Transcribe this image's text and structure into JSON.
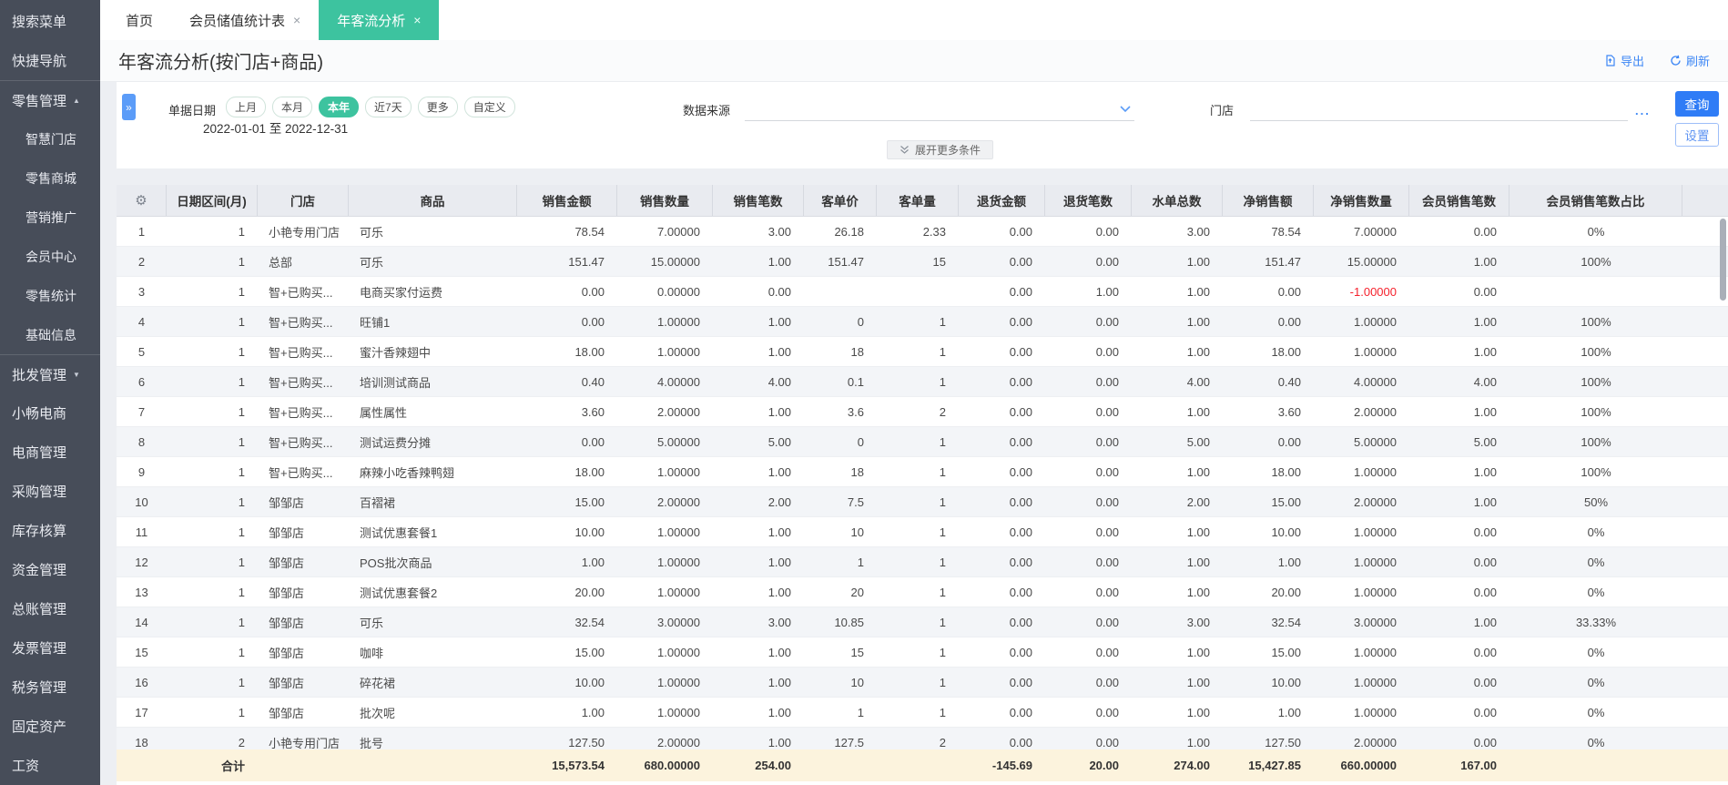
{
  "colors": {
    "sidebar_bg": "#474d59",
    "accent_green": "#3dc39f",
    "accent_blue": "#2f7cf6",
    "link_blue": "#3d87f5",
    "negative_red": "#f5222d",
    "total_row_bg": "#fcf3dd",
    "header_bg": "#e9ebf0"
  },
  "sidebar": {
    "items": [
      {
        "id": "search-menu",
        "label": "搜索菜单"
      },
      {
        "id": "quick-nav",
        "label": "快捷导航"
      },
      {
        "id": "retail-management",
        "label": "零售管理",
        "arrow": "up",
        "sep": true
      },
      {
        "id": "smart-store",
        "label": "智慧门店",
        "sub": true
      },
      {
        "id": "retail-mall",
        "label": "零售商城",
        "sub": true
      },
      {
        "id": "marketing-promotion",
        "label": "营销推广",
        "sub": true
      },
      {
        "id": "member-center",
        "label": "会员中心",
        "sub": true
      },
      {
        "id": "retail-statistics",
        "label": "零售统计",
        "sub": true
      },
      {
        "id": "basic-info",
        "label": "基础信息",
        "sub": true
      },
      {
        "id": "wholesale-management",
        "label": "批发管理",
        "arrow": "down",
        "sep": true
      },
      {
        "id": "xiaochang-ecommerce",
        "label": "小畅电商"
      },
      {
        "id": "ecommerce-management",
        "label": "电商管理"
      },
      {
        "id": "procurement-management",
        "label": "采购管理"
      },
      {
        "id": "inventory-accounting",
        "label": "库存核算"
      },
      {
        "id": "funds-management",
        "label": "资金管理"
      },
      {
        "id": "general-ledger",
        "label": "总账管理"
      },
      {
        "id": "invoice-management",
        "label": "发票管理"
      },
      {
        "id": "tax-management",
        "label": "税务管理"
      },
      {
        "id": "fixed-assets",
        "label": "固定资产"
      },
      {
        "id": "payroll",
        "label": "工资"
      }
    ]
  },
  "tabs": [
    {
      "id": "home",
      "label": "首页",
      "closable": false,
      "active": false
    },
    {
      "id": "member-stored-value-report",
      "label": "会员储值统计表",
      "closable": true,
      "active": false
    },
    {
      "id": "annual-customer-flow",
      "label": "年客流分析",
      "closable": true,
      "active": true
    }
  ],
  "page": {
    "title": "年客流分析(按门店+商品)",
    "export_label": "导出",
    "refresh_label": "刷新"
  },
  "filters": {
    "date_label": "单据日期",
    "date_options": [
      "上月",
      "本月",
      "本年",
      "近7天",
      "更多",
      "自定义"
    ],
    "date_active": "本年",
    "date_range": "2022-01-01 至 2022-12-31",
    "source_label": "数据来源",
    "store_label": "门店",
    "source_value": "",
    "store_value": "",
    "more_label": "展开更多条件",
    "query_label": "查询",
    "settings_label": "设置",
    "more_dots": "..."
  },
  "table": {
    "columns": [
      {
        "id": "date-interval",
        "label": "日期区间(月)"
      },
      {
        "id": "store",
        "label": "门店"
      },
      {
        "id": "product",
        "label": "商品"
      },
      {
        "id": "sales-amount",
        "label": "销售金额"
      },
      {
        "id": "sales-quantity",
        "label": "销售数量"
      },
      {
        "id": "sales-count",
        "label": "销售笔数"
      },
      {
        "id": "price-per-customer",
        "label": "客单价"
      },
      {
        "id": "qty-per-customer",
        "label": "客单量"
      },
      {
        "id": "refund-amount",
        "label": "退货金额"
      },
      {
        "id": "refund-count",
        "label": "退货笔数"
      },
      {
        "id": "receipt-total",
        "label": "水单总数"
      },
      {
        "id": "net-sales-amount",
        "label": "净销售额"
      },
      {
        "id": "net-sales-quantity",
        "label": "净销售数量"
      },
      {
        "id": "member-sales-count",
        "label": "会员销售笔数"
      },
      {
        "id": "member-sales-ratio",
        "label": "会员销售笔数占比"
      }
    ],
    "rows": [
      [
        "1",
        "1",
        "小艳专用门店",
        "可乐",
        "78.54",
        "7.00000",
        "3.00",
        "26.18",
        "2.33",
        "0.00",
        "0.00",
        "3.00",
        "78.54",
        "7.00000",
        "0.00",
        "0%"
      ],
      [
        "2",
        "1",
        "总部",
        "可乐",
        "151.47",
        "15.00000",
        "1.00",
        "151.47",
        "15",
        "0.00",
        "0.00",
        "1.00",
        "151.47",
        "15.00000",
        "1.00",
        "100%"
      ],
      [
        "3",
        "1",
        "智+已购买...",
        "电商买家付运费",
        "0.00",
        "0.00000",
        "0.00",
        "",
        "",
        "0.00",
        "1.00",
        "1.00",
        "0.00",
        "-1.00000",
        "0.00",
        ""
      ],
      [
        "4",
        "1",
        "智+已购买...",
        "旺铺1",
        "0.00",
        "1.00000",
        "1.00",
        "0",
        "1",
        "0.00",
        "0.00",
        "1.00",
        "0.00",
        "1.00000",
        "1.00",
        "100%"
      ],
      [
        "5",
        "1",
        "智+已购买...",
        "蜜汁香辣翅中",
        "18.00",
        "1.00000",
        "1.00",
        "18",
        "1",
        "0.00",
        "0.00",
        "1.00",
        "18.00",
        "1.00000",
        "1.00",
        "100%"
      ],
      [
        "6",
        "1",
        "智+已购买...",
        "培训测试商品",
        "0.40",
        "4.00000",
        "4.00",
        "0.1",
        "1",
        "0.00",
        "0.00",
        "4.00",
        "0.40",
        "4.00000",
        "4.00",
        "100%"
      ],
      [
        "7",
        "1",
        "智+已购买...",
        "属性属性",
        "3.60",
        "2.00000",
        "1.00",
        "3.6",
        "2",
        "0.00",
        "0.00",
        "1.00",
        "3.60",
        "2.00000",
        "1.00",
        "100%"
      ],
      [
        "8",
        "1",
        "智+已购买...",
        "测试运费分摊",
        "0.00",
        "5.00000",
        "5.00",
        "0",
        "1",
        "0.00",
        "0.00",
        "5.00",
        "0.00",
        "5.00000",
        "5.00",
        "100%"
      ],
      [
        "9",
        "1",
        "智+已购买...",
        "麻辣小吃香辣鸭翅",
        "18.00",
        "1.00000",
        "1.00",
        "18",
        "1",
        "0.00",
        "0.00",
        "1.00",
        "18.00",
        "1.00000",
        "1.00",
        "100%"
      ],
      [
        "10",
        "1",
        "邹邹店",
        "百褶裙",
        "15.00",
        "2.00000",
        "2.00",
        "7.5",
        "1",
        "0.00",
        "0.00",
        "2.00",
        "15.00",
        "2.00000",
        "1.00",
        "50%"
      ],
      [
        "11",
        "1",
        "邹邹店",
        "测试优惠套餐1",
        "10.00",
        "1.00000",
        "1.00",
        "10",
        "1",
        "0.00",
        "0.00",
        "1.00",
        "10.00",
        "1.00000",
        "0.00",
        "0%"
      ],
      [
        "12",
        "1",
        "邹邹店",
        "POS批次商品",
        "1.00",
        "1.00000",
        "1.00",
        "1",
        "1",
        "0.00",
        "0.00",
        "1.00",
        "1.00",
        "1.00000",
        "0.00",
        "0%"
      ],
      [
        "13",
        "1",
        "邹邹店",
        "测试优惠套餐2",
        "20.00",
        "1.00000",
        "1.00",
        "20",
        "1",
        "0.00",
        "0.00",
        "1.00",
        "20.00",
        "1.00000",
        "0.00",
        "0%"
      ],
      [
        "14",
        "1",
        "邹邹店",
        "可乐",
        "32.54",
        "3.00000",
        "3.00",
        "10.85",
        "1",
        "0.00",
        "0.00",
        "3.00",
        "32.54",
        "3.00000",
        "1.00",
        "33.33%"
      ],
      [
        "15",
        "1",
        "邹邹店",
        "咖啡",
        "15.00",
        "1.00000",
        "1.00",
        "15",
        "1",
        "0.00",
        "0.00",
        "1.00",
        "15.00",
        "1.00000",
        "0.00",
        "0%"
      ],
      [
        "16",
        "1",
        "邹邹店",
        "碎花裙",
        "10.00",
        "1.00000",
        "1.00",
        "10",
        "1",
        "0.00",
        "0.00",
        "1.00",
        "10.00",
        "1.00000",
        "0.00",
        "0%"
      ],
      [
        "17",
        "1",
        "邹邹店",
        "批次呢",
        "1.00",
        "1.00000",
        "1.00",
        "1",
        "1",
        "0.00",
        "0.00",
        "1.00",
        "1.00",
        "1.00000",
        "0.00",
        "0%"
      ],
      [
        "18",
        "2",
        "小艳专用门店",
        "批号",
        "127.50",
        "2.00000",
        "1.00",
        "127.5",
        "2",
        "0.00",
        "0.00",
        "1.00",
        "127.50",
        "2.00000",
        "0.00",
        "0%"
      ]
    ],
    "total_row": [
      "",
      "合计",
      "",
      "",
      "15,573.54",
      "680.00000",
      "254.00",
      "",
      "",
      "-145.69",
      "20.00",
      "274.00",
      "15,427.85",
      "660.00000",
      "167.00",
      ""
    ]
  }
}
